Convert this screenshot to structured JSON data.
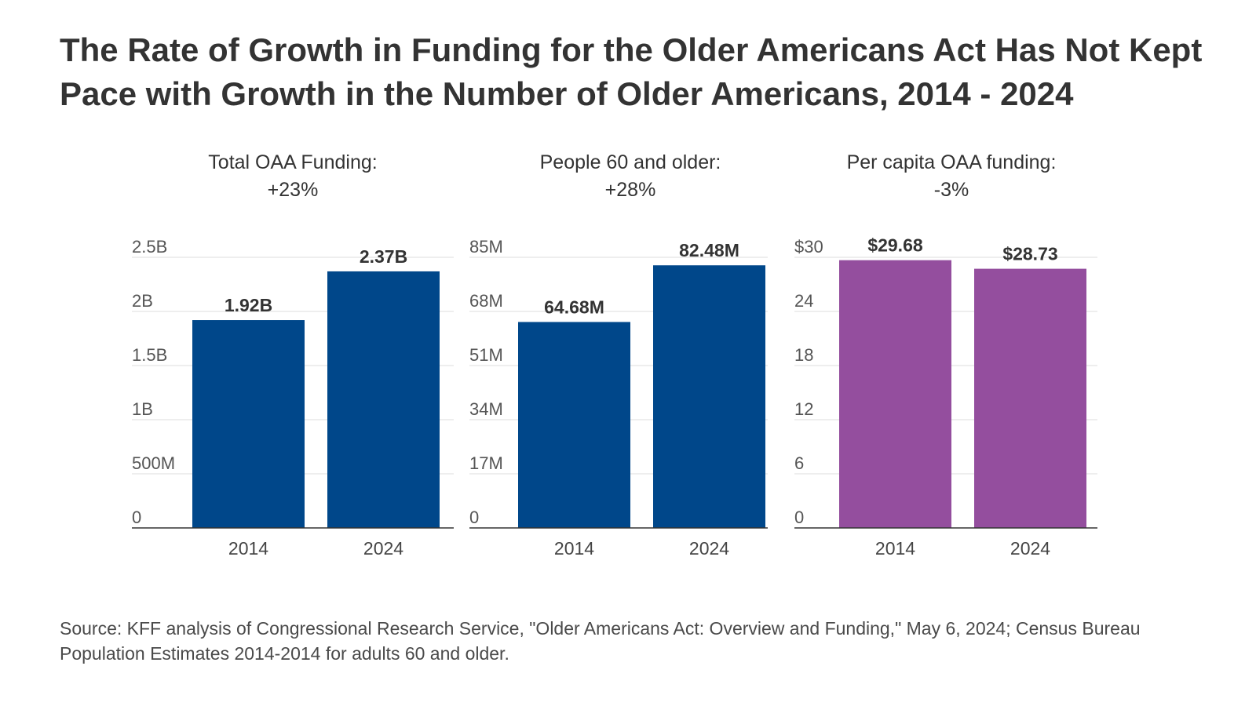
{
  "title": "The Rate of Growth in Funding for the Older Americans Act Has Not Kept Pace with Growth in the Number of Older Americans, 2014 - 2024",
  "source": "Source: KFF analysis of Congressional Research Service, \"Older Americans Act: Overview and Funding,\" May 6, 2024; Census Bureau Population Estimates 2014-2014 for adults 60 and older.",
  "chart_data": [
    {
      "type": "bar",
      "title": "Total OAA Funding:",
      "subtitle": "+23%",
      "categories": [
        "2014",
        "2024"
      ],
      "values": [
        1.92,
        2.37
      ],
      "value_labels": [
        "1.92B",
        "2.37B"
      ],
      "ylim": [
        0,
        2.5
      ],
      "ticks": [
        0,
        0.5,
        1,
        1.5,
        2,
        2.5
      ],
      "tick_labels": [
        "0",
        "500M",
        "1B",
        "1.5B",
        "2B",
        "2.5B"
      ],
      "color": "#00478A",
      "grid": true
    },
    {
      "type": "bar",
      "title": "People 60 and older:",
      "subtitle": "+28%",
      "categories": [
        "2014",
        "2024"
      ],
      "values": [
        64.68,
        82.48
      ],
      "value_labels": [
        "64.68M",
        "82.48M"
      ],
      "ylim": [
        0,
        85
      ],
      "ticks": [
        0,
        17,
        34,
        51,
        68,
        85
      ],
      "tick_labels": [
        "0",
        "17M",
        "34M",
        "51M",
        "68M",
        "85M"
      ],
      "color": "#00478A",
      "grid": true
    },
    {
      "type": "bar",
      "title": "Per capita OAA funding:",
      "subtitle": "-3%",
      "categories": [
        "2014",
        "2024"
      ],
      "values": [
        29.68,
        28.73
      ],
      "value_labels": [
        "$29.68",
        "$28.73"
      ],
      "ylim": [
        0,
        30
      ],
      "ticks": [
        0,
        6,
        12,
        18,
        24,
        30
      ],
      "tick_labels": [
        "0",
        "6",
        "12",
        "18",
        "24",
        "$30"
      ],
      "color": "#944E9E",
      "grid": true
    }
  ]
}
